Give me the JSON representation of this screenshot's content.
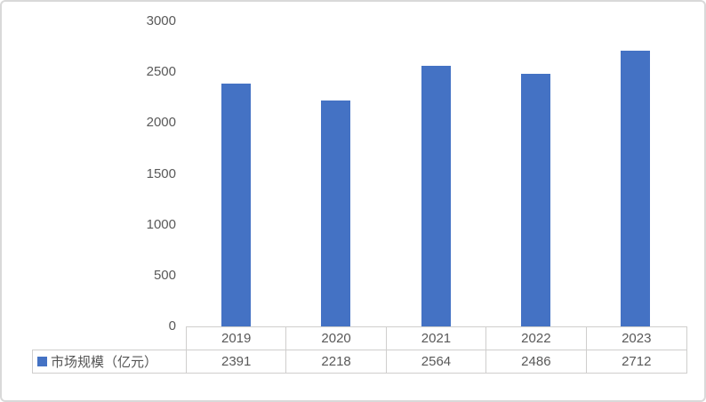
{
  "chart_data": {
    "type": "bar",
    "title": "",
    "categories": [
      "2019",
      "2020",
      "2021",
      "2022",
      "2023"
    ],
    "series": [
      {
        "name": "市场规模（亿元）",
        "values": [
          2391,
          2218,
          2564,
          2486,
          2712
        ]
      }
    ],
    "xlabel": "",
    "ylabel": "",
    "ylim": [
      0,
      3000
    ],
    "yticks": [
      0,
      500,
      1000,
      1500,
      2000,
      2500,
      3000
    ],
    "grid": false,
    "legend_position": "data-table-left",
    "legend_marker": "square",
    "colors": {
      "bar": "#4472c4",
      "tick_text": "#595959",
      "table_text": "#595959",
      "table_border": "#cfcecd",
      "frame_border": "#d9d9d9",
      "background": "#ffffff"
    }
  }
}
